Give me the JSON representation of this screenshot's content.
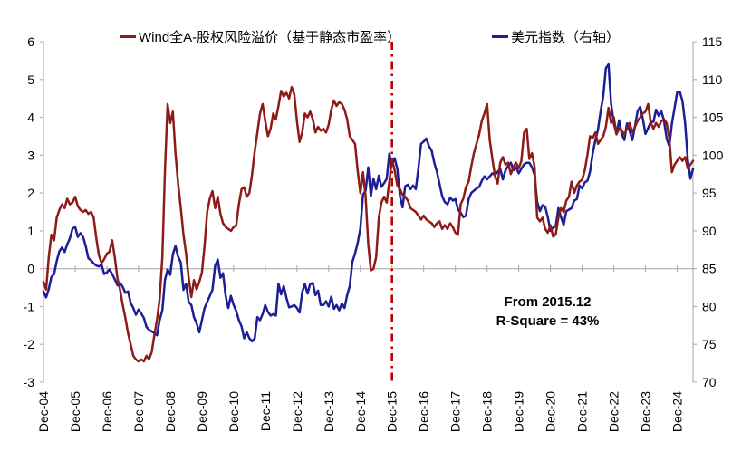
{
  "chart_data": {
    "type": "line",
    "title": "",
    "x_start_label": "Dec-04",
    "x_end": "mid-2025",
    "months_per_point": 1,
    "x_tick_labels": [
      "Dec-04",
      "Dec-05",
      "Dec-06",
      "Dec-07",
      "Dec-08",
      "Dec-09",
      "Dec-10",
      "Dec-11",
      "Dec-12",
      "Dec-13",
      "Dec-14",
      "Dec-15",
      "Dec-16",
      "Dec-17",
      "Dec-18",
      "Dec-19",
      "Dec-20",
      "Dec-21",
      "Dec-22",
      "Dec-23",
      "Dec-24"
    ],
    "x_tick_interval": 12,
    "left_axis": {
      "min": -3,
      "max": 6,
      "ticks": [
        6,
        5,
        4,
        3,
        2,
        1,
        0,
        -1,
        -2,
        -3
      ]
    },
    "right_axis": {
      "min": 70,
      "max": 115,
      "ticks": [
        115,
        110,
        105,
        100,
        95,
        90,
        85,
        80,
        75,
        70
      ]
    },
    "grid": "zero-line-only",
    "legend_position": "top",
    "legend": [
      {
        "name": "Wind全A-股权风险溢价（基于静态市盈率）",
        "color": "#8e1b17",
        "axis": "left"
      },
      {
        "name": "美元指数（右轴）",
        "color": "#1e1e96",
        "axis": "right"
      }
    ],
    "marker_line": {
      "at_x_label": "Dec-15",
      "x_index": 132,
      "color": "#c00000",
      "style": "dash-dot",
      "orientation": "vertical"
    },
    "annotation": {
      "line1": "From 2015.12",
      "line2": "R-Square = 43%"
    },
    "series": [
      {
        "name": "Wind全A-股权风险溢价（基于静态市盈率）",
        "axis": "left",
        "color": "#8e1b17",
        "values": [
          -0.35,
          -0.55,
          0.3,
          0.9,
          0.75,
          1.35,
          1.55,
          1.7,
          1.6,
          1.85,
          1.7,
          1.75,
          1.9,
          1.65,
          1.55,
          1.5,
          1.55,
          1.45,
          1.5,
          1.35,
          0.8,
          0.35,
          0.15,
          0.25,
          0.4,
          0.45,
          0.75,
          0.3,
          -0.25,
          -0.55,
          -0.95,
          -1.3,
          -1.7,
          -2.0,
          -2.3,
          -2.4,
          -2.45,
          -2.4,
          -2.45,
          -2.3,
          -2.4,
          -2.2,
          -1.75,
          -1.35,
          -0.8,
          0.3,
          2.6,
          4.35,
          3.85,
          4.15,
          3.05,
          2.25,
          1.6,
          0.9,
          0.4,
          -0.25,
          -0.75,
          -0.3,
          -0.55,
          -0.35,
          -0.1,
          0.6,
          1.5,
          1.85,
          2.05,
          1.6,
          1.9,
          1.45,
          1.2,
          1.1,
          1.05,
          1.0,
          1.1,
          1.15,
          1.7,
          2.1,
          2.15,
          1.9,
          2.0,
          2.5,
          3.1,
          3.6,
          4.1,
          4.35,
          3.9,
          3.5,
          3.7,
          4.1,
          3.95,
          4.3,
          4.7,
          4.55,
          4.65,
          4.5,
          4.8,
          4.6,
          3.9,
          3.35,
          3.6,
          4.1,
          4.0,
          4.15,
          3.95,
          3.6,
          3.75,
          3.65,
          3.7,
          3.6,
          3.8,
          4.2,
          4.45,
          4.3,
          4.4,
          4.35,
          4.2,
          3.95,
          3.5,
          3.4,
          3.3,
          2.6,
          2.0,
          2.55,
          1.9,
          0.65,
          -0.05,
          0.0,
          0.3,
          1.35,
          1.75,
          1.9,
          1.75,
          2.3,
          2.9,
          2.6,
          2.2,
          2.1,
          1.95,
          1.9,
          1.8,
          1.6,
          1.55,
          1.5,
          1.4,
          1.3,
          1.4,
          1.3,
          1.25,
          1.2,
          1.1,
          1.2,
          1.25,
          1.05,
          1.15,
          1.05,
          1.2,
          1.1,
          0.95,
          0.9,
          1.7,
          1.85,
          2.15,
          2.3,
          2.7,
          3.05,
          3.3,
          3.55,
          3.9,
          4.1,
          4.35,
          3.4,
          2.9,
          2.45,
          2.25,
          2.8,
          2.95,
          2.75,
          2.8,
          2.5,
          2.7,
          2.8,
          2.65,
          2.85,
          3.6,
          3.7,
          2.9,
          3.05,
          2.7,
          1.35,
          1.25,
          1.35,
          1.05,
          0.95,
          1.15,
          0.85,
          0.9,
          1.35,
          1.6,
          1.5,
          1.8,
          1.9,
          2.3,
          2.0,
          2.2,
          2.3,
          2.35,
          2.6,
          3.0,
          3.5,
          3.45,
          3.6,
          3.3,
          3.4,
          3.5,
          3.75,
          4.25,
          3.85,
          4.0,
          3.55,
          3.7,
          3.65,
          3.55,
          3.7,
          3.85,
          3.6,
          3.75,
          3.9,
          4.0,
          4.1,
          4.15,
          4.35,
          3.85,
          3.7,
          3.85,
          3.75,
          3.9,
          3.95,
          3.85,
          3.45,
          2.55,
          2.75,
          2.85,
          2.95,
          2.85,
          2.95,
          2.65,
          2.75,
          2.85
        ]
      },
      {
        "name": "美元指数（右轴）",
        "axis": "right",
        "color": "#1e1e96",
        "values": [
          82.0,
          81.2,
          82.3,
          83.9,
          84.3,
          86.0,
          87.3,
          87.8,
          87.2,
          88.2,
          89.0,
          90.3,
          90.5,
          89.2,
          89.7,
          89.2,
          88.0,
          86.4,
          86.1,
          85.7,
          85.4,
          85.3,
          85.5,
          84.3,
          84.5,
          84.9,
          84.3,
          83.6,
          82.8,
          83.1,
          82.6,
          81.8,
          82.0,
          80.5,
          79.8,
          78.9,
          79.6,
          79.1,
          78.5,
          77.3,
          76.9,
          76.7,
          76.5,
          76.2,
          78.2,
          79.5,
          83.5,
          84.9,
          84.2,
          86.9,
          88.0,
          86.6,
          85.8,
          82.2,
          83.0,
          80.6,
          80.2,
          78.6,
          77.8,
          76.6,
          78.2,
          79.8,
          80.6,
          81.4,
          82.2,
          85.4,
          86.2,
          83.8,
          84.4,
          81.4,
          79.8,
          81.4,
          80.2,
          79.4,
          78.2,
          77.4,
          75.8,
          76.6,
          75.8,
          75.4,
          75.8,
          78.6,
          78.2,
          79.0,
          80.2,
          79.3,
          78.8,
          79.0,
          78.8,
          83.0,
          81.6,
          82.7,
          81.2,
          79.9,
          80.0,
          80.2,
          79.8,
          79.2,
          81.9,
          83.0,
          81.7,
          83.0,
          83.1,
          81.5,
          82.1,
          80.2,
          80.2,
          80.7,
          80.0,
          81.3,
          79.7,
          80.2,
          79.5,
          80.4,
          79.8,
          81.5,
          82.7,
          85.9,
          87.0,
          88.4,
          90.3,
          94.8,
          95.3,
          98.4,
          94.6,
          96.9,
          95.5,
          97.3,
          95.8,
          96.3,
          96.9,
          100.2,
          98.7,
          99.6,
          98.2,
          94.6,
          93.1,
          95.9,
          96.1,
          95.5,
          96.0,
          95.5,
          98.3,
          101.5,
          101.8,
          102.2,
          101.2,
          100.6,
          99.0,
          97.8,
          96.2,
          94.6,
          93.8,
          93.5,
          94.4,
          94.0,
          94.2,
          92.8,
          92.4,
          91.8,
          92.0,
          94.2,
          95.0,
          95.3,
          95.6,
          95.8,
          96.6,
          97.2,
          96.8,
          97.2,
          97.6,
          97.4,
          97.8,
          98.2,
          96.8,
          98.0,
          98.6,
          99.0,
          98.0,
          98.4,
          97.6,
          98.2,
          98.8,
          99.0,
          99.0,
          98.4,
          97.4,
          93.8,
          92.6,
          93.4,
          93.2,
          91.8,
          90.0,
          90.4,
          90.6,
          93.0,
          91.8,
          90.8,
          92.6,
          92.8,
          93.0,
          94.0,
          94.2,
          96.0,
          95.6,
          96.4,
          96.6,
          97.8,
          100.2,
          102.0,
          103.4,
          105.8,
          107.8,
          111.5,
          112.0,
          106.8,
          104.2,
          102.8,
          104.6,
          102.8,
          102.0,
          104.2,
          103.2,
          102.0,
          103.8,
          105.8,
          106.4,
          104.8,
          102.8,
          103.6,
          104.4,
          104.4,
          106.0,
          105.2,
          105.8,
          104.6,
          102.2,
          101.2,
          104.2,
          106.2,
          108.3,
          108.4,
          107.2,
          104.2,
          99.4,
          96.9,
          98.2
        ]
      }
    ],
    "colors": {
      "erp_line": "#8e1b17",
      "dxy_line": "#1e1e96",
      "marker_line": "#c00000",
      "axis": "#a6a6a6",
      "text": "#000000",
      "background": "#ffffff"
    }
  }
}
